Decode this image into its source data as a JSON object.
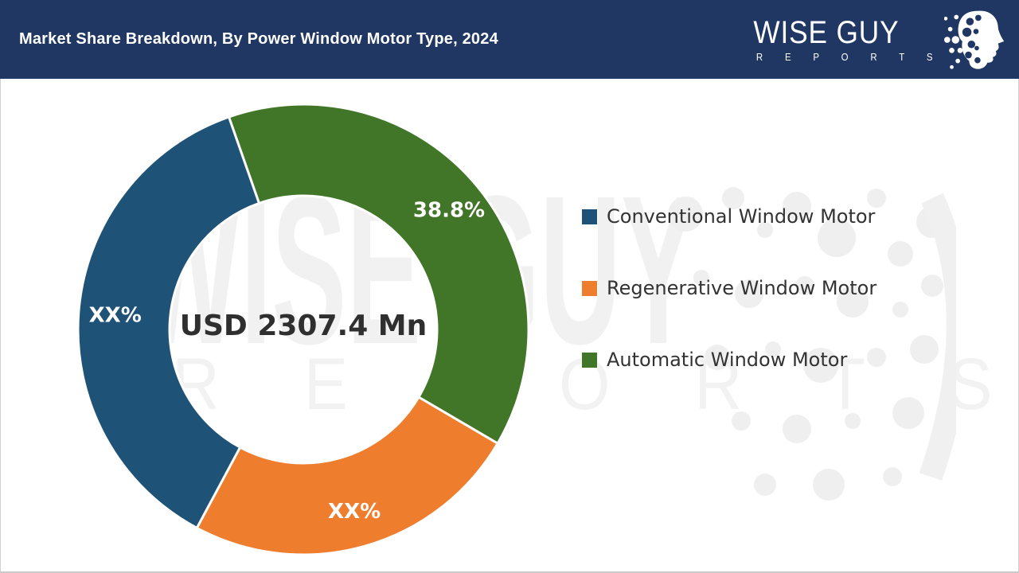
{
  "header": {
    "title": "Market Share Breakdown, By Power Window Motor Type, 2024",
    "bg_color": "#203763",
    "logo": {
      "line1": "WISE GUY",
      "line2": "R E P O R T S"
    }
  },
  "watermark": {
    "line1": "WISE GUY",
    "line2": "R E P O R T S",
    "color": "#f1f1f1"
  },
  "chart_data": {
    "type": "donut",
    "title": "Market Share Breakdown, By Power Window Motor Type, 2024",
    "center_label": "USD 2307.4 Mn",
    "start_angle_deg": 340.7,
    "legend_position": "right",
    "segments": [
      {
        "name": "Automatic Window Motor",
        "label": "38.8%",
        "sweep_deg": 139.7,
        "color": "#417628"
      },
      {
        "name": "Regenerative Window Motor",
        "label": "XX%",
        "sweep_deg": 87.8,
        "color": "#ee7d2e"
      },
      {
        "name": "Conventional Window Motor",
        "label": "XX%",
        "sweep_deg": 132.5,
        "color": "#1e5377"
      }
    ],
    "legend": [
      {
        "label": "Conventional Window Motor",
        "color": "#1e5377"
      },
      {
        "label": "Regenerative Window Motor",
        "color": "#ee7d2e"
      },
      {
        "label": "Automatic Window Motor",
        "color": "#417628"
      }
    ]
  }
}
